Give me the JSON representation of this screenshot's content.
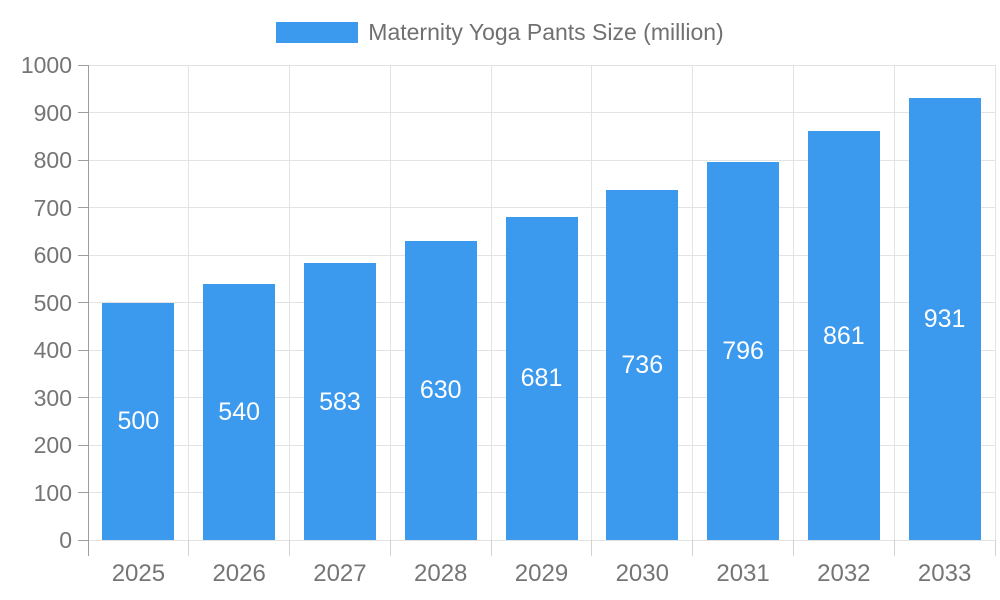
{
  "legend": {
    "label": "Maternity Yoga Pants Size (million)"
  },
  "colors": {
    "bar": "#3B99EE",
    "grid": "#e3e3e3",
    "axis_line": "#9e9e9e",
    "boundary_tick": "#d2d2d2",
    "axis_text": "#757575",
    "legend_text": "#707070",
    "value_label_text": "#ffffff",
    "background": "#ffffff"
  },
  "chart_data": {
    "type": "bar",
    "title": "Maternity Yoga Pants Size (million)",
    "categories": [
      "2025",
      "2026",
      "2027",
      "2028",
      "2029",
      "2030",
      "2031",
      "2032",
      "2033"
    ],
    "values": [
      500,
      540,
      583,
      630,
      681,
      736,
      796,
      861,
      931
    ],
    "value_labels": [
      "500",
      "540",
      "583",
      "630",
      "681",
      "736",
      "796",
      "861",
      "931"
    ],
    "xlabel": "",
    "ylabel": "",
    "ylim": [
      0,
      1000
    ],
    "ytick_step": 100,
    "yticks": [
      0,
      100,
      200,
      300,
      400,
      500,
      600,
      700,
      800,
      900,
      1000
    ],
    "grid": true,
    "legend_position": "top",
    "series_name": "Maternity Yoga Pants Size (million)",
    "value_label_position": "inside-center"
  }
}
